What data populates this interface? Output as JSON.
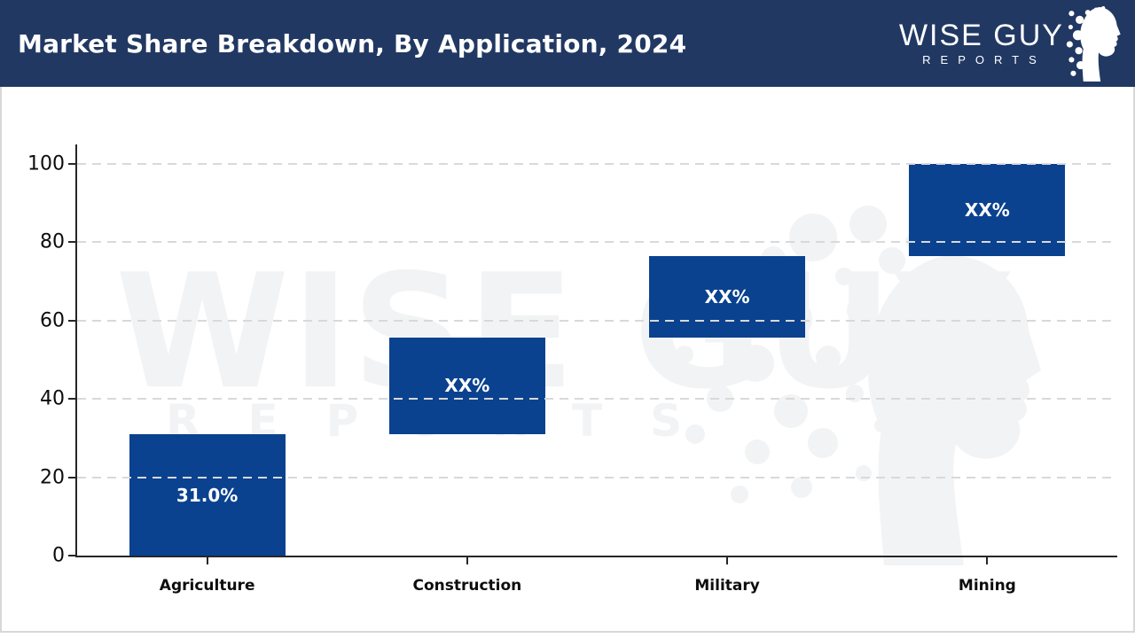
{
  "header": {
    "title": "Market Share Breakdown, By Application, 2024",
    "logo": {
      "line1": "WISE GUY",
      "line2": "REPORTS"
    }
  },
  "watermark": {
    "line1": "WISE GUY",
    "line2": "REPORTS"
  },
  "colors": {
    "header_bg": "#213863",
    "bar": "#0a428f",
    "bar_label_text": "#ffffff",
    "grid": "#d9d9d9",
    "axis": "#262626",
    "watermark": "#f2f3f4"
  },
  "chart_data": {
    "type": "bar",
    "subtype": "waterfall",
    "title": "Market Share Breakdown, By Application, 2024",
    "categories": [
      "Agriculture",
      "Construction",
      "Military",
      "Mining"
    ],
    "segments": [
      {
        "category": "Agriculture",
        "start": 0,
        "end": 31,
        "label": "31.0%"
      },
      {
        "category": "Construction",
        "start": 31,
        "end": 55.7,
        "label": "XX%"
      },
      {
        "category": "Military",
        "start": 55.7,
        "end": 76.4,
        "label": "XX%"
      },
      {
        "category": "Mining",
        "start": 76.4,
        "end": 100,
        "label": "XX%"
      }
    ],
    "y_ticks": [
      0,
      20,
      40,
      60,
      80,
      100
    ],
    "ylim": [
      0,
      105
    ],
    "xlabel": "",
    "ylabel": "",
    "grid": "dashed-horizontal",
    "legend": false,
    "bar_width_fraction": 0.6
  }
}
